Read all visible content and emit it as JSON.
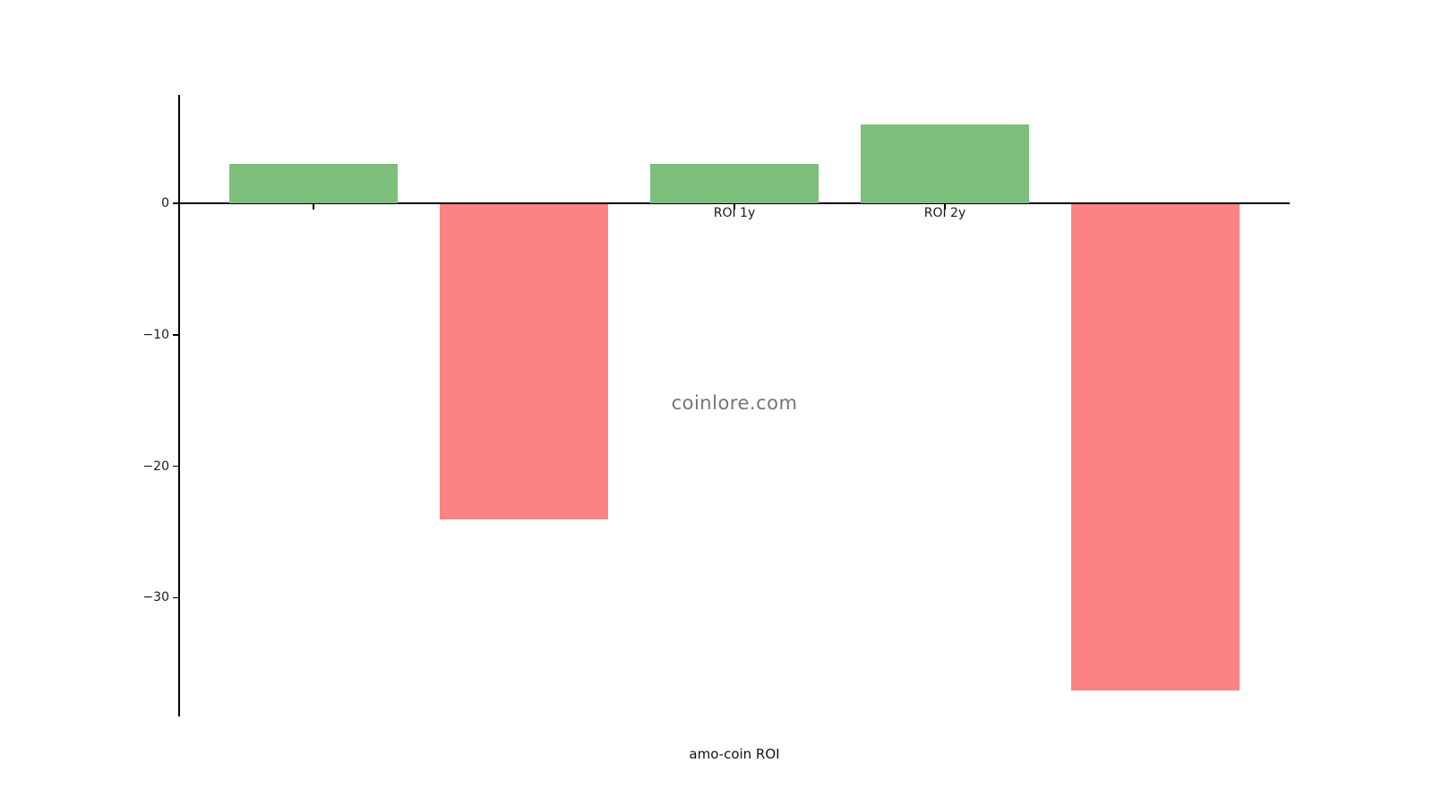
{
  "chart": {
    "title": "amo-coin ROI",
    "watermark": "coinlore.com"
  },
  "chart_data": {
    "type": "bar",
    "categories": [
      "",
      "",
      "ROI 1y",
      "ROI 2y",
      ""
    ],
    "values": [
      3,
      -24,
      3,
      6,
      -37
    ],
    "title": "amo-coin ROI",
    "xlabel": "amo-coin ROI",
    "ylabel": "",
    "ylim": [
      -39.2,
      8.3
    ],
    "grid": false,
    "legend": null,
    "watermark": "coinlore.com",
    "yticks": [
      {
        "label": "0",
        "value": 0
      },
      {
        "label": "−10",
        "value": -10
      },
      {
        "label": "−20",
        "value": -20
      },
      {
        "label": "−30",
        "value": -30
      }
    ],
    "xticks": [
      {
        "label": "",
        "bar_index": 0
      },
      {
        "label": "ROI 1y",
        "bar_index": 2
      },
      {
        "label": "ROI 2y",
        "bar_index": 3
      }
    ],
    "colors": {
      "positive": "#7dbe7b",
      "negative": "#fc8383",
      "axis": "#000000",
      "tick_label": "#1a1a1a",
      "watermark": "#757575"
    }
  }
}
